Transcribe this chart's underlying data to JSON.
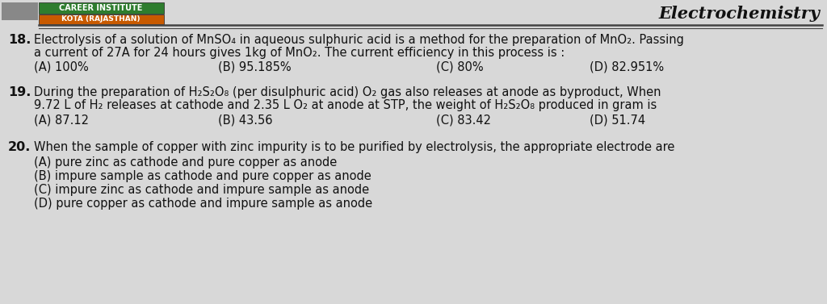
{
  "bg_color": "#d8d8d8",
  "text_color": "#111111",
  "header_title": "Electrochemistry",
  "q18_num": "18.",
  "q18_line1": "Electrolysis of a solution of MnSO₄ in aqueous sulphuric acid is a method for the preparation of MnO₂. Passing",
  "q18_line2": "a current of 27A for 24 hours gives 1kg of MnO₂. The current efficiency in this process is :",
  "q18_A": "(A) 100%",
  "q18_B": "(B) 95.185%",
  "q18_C": "(C) 80%",
  "q18_D": "(D) 82.951%",
  "q19_num": "19.",
  "q19_line1": "During the preparation of H₂S₂O₈ (per disulphuric acid) O₂ gas also releases at anode as byproduct, When",
  "q19_line2": "9.72 L of H₂ releases at cathode and 2.35 L O₂ at anode at STP, the weight of H₂S₂O₈ produced in gram is",
  "q19_A": "(A) 87.12",
  "q19_B": "(B) 43.56",
  "q19_C": "(C) 83.42",
  "q19_D": "(D) 51.74",
  "q20_num": "20.",
  "q20_line1": "When the sample of copper with zinc impurity is to be purified by electrolysis, the appropriate electrode are",
  "q20_A": "(A) pure zinc as cathode and pure copper as anode",
  "q20_B": "(B) impure sample as cathode and pure copper as anode",
  "q20_C": "(C) impure zinc as cathode and impure sample as anode",
  "q20_D": "(D) pure copper as cathode and impure sample as anode",
  "logo_text1": "CAREER INSTITUTE",
  "logo_text2": "KOTA (RAJASTHAN)",
  "fs_main": 10.5,
  "fs_header": 15,
  "fs_logo": 7
}
